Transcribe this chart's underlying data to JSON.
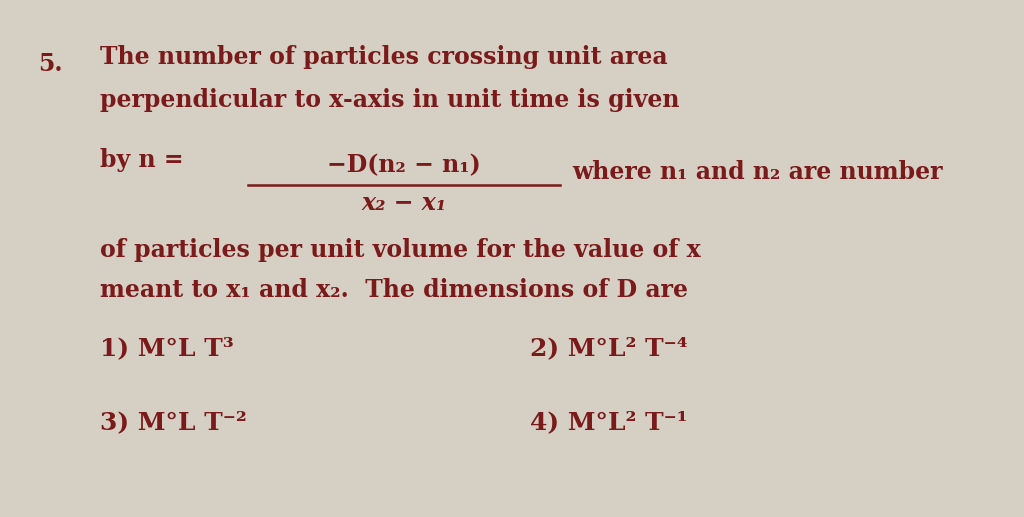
{
  "background_color": "#d6cfc4",
  "text_color": "#7a1a1a",
  "fig_width": 10.24,
  "fig_height": 5.17,
  "dpi": 100,
  "question_number": "5.",
  "line1": "The number of particles crossing unit area",
  "line2": "perpendicular to x-axis in unit time is given",
  "formula_prefix": "by n = ",
  "numerator": "−D(n₂ − n₁)",
  "denominator": "x₂ − x₁",
  "formula_suffix": "where n₁ and n₂ are number",
  "line4": "of particles per unit volume for the value of x",
  "line5": "meant to x₁ and x₂.  The dimensions of D are",
  "opt1_label": "1) ",
  "opt1_val": "M°L T³",
  "opt2_label": "2) ",
  "opt2_val": "M°L² T⁻⁴",
  "opt3_label": "3) ",
  "opt3_val": "M°L T⁻²",
  "opt4_label": "4) ",
  "opt4_val": "M°L² T⁻¹",
  "font_size_main": 17,
  "font_size_options": 18,
  "font_family": "DejaVu Serif"
}
